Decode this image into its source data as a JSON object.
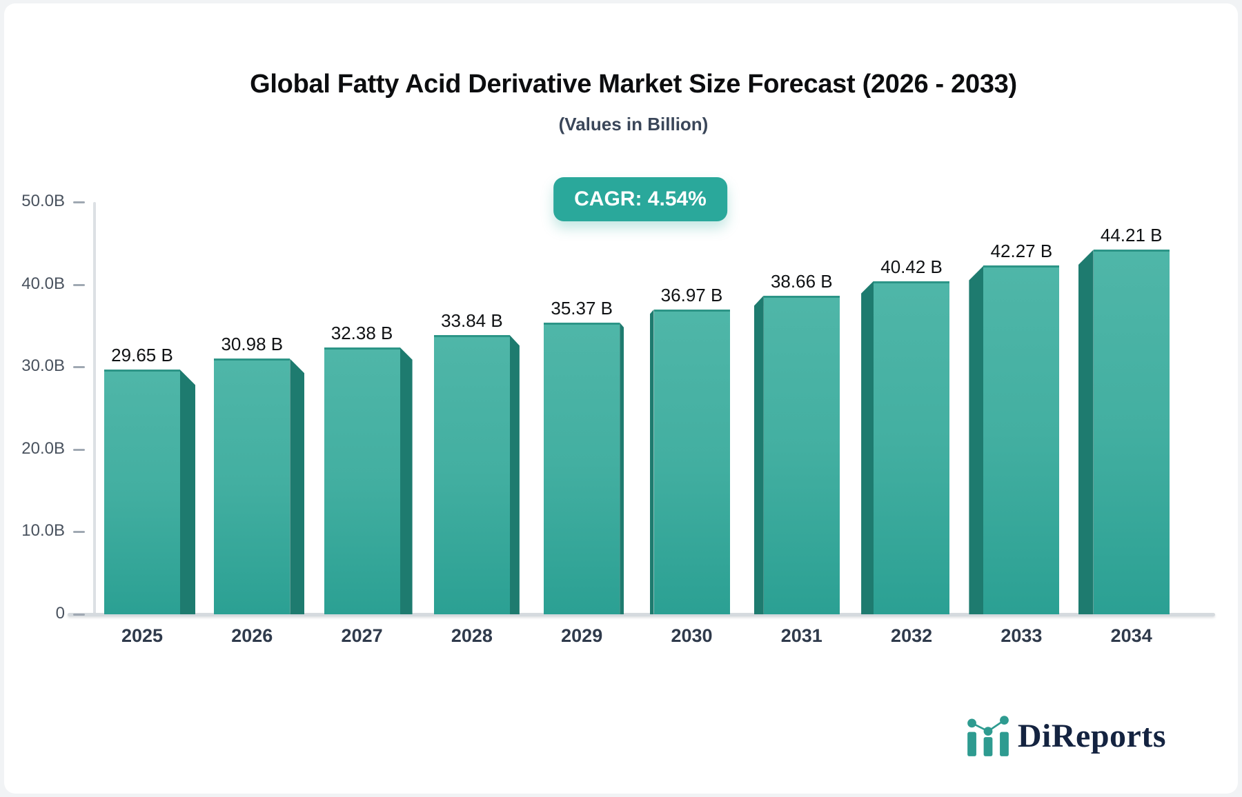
{
  "chart": {
    "title": "Global Fatty Acid Derivative Market Size Forecast (2026 - 2033)",
    "subtitle": "(Values in Billion)",
    "cagr_label": "CAGR: 4.54%"
  },
  "chart_data": {
    "type": "bar",
    "title": "Global Fatty Acid Derivative Market Size Forecast (2026 - 2033)",
    "subtitle": "(Values in Billion)",
    "annotation": "CAGR: 4.54%",
    "categories": [
      "2025",
      "2026",
      "2027",
      "2028",
      "2029",
      "2030",
      "2031",
      "2032",
      "2033",
      "2034"
    ],
    "values": [
      29.65,
      30.98,
      32.38,
      33.84,
      35.37,
      36.97,
      38.66,
      40.42,
      42.27,
      44.21
    ],
    "value_labels": [
      "29.65 B",
      "30.98 B",
      "32.38 B",
      "33.84 B",
      "35.37 B",
      "36.97 B",
      "38.66 B",
      "40.42 B",
      "42.27 B",
      "44.21 B"
    ],
    "xlabel": "",
    "ylabel": "",
    "ylim": [
      0,
      50
    ],
    "yticks": [
      {
        "value": 50,
        "label": "50.0B"
      },
      {
        "value": 40,
        "label": "40.0B"
      },
      {
        "value": 30,
        "label": "30.0B"
      },
      {
        "value": 20,
        "label": "20.0B"
      },
      {
        "value": 10,
        "label": "10.0B"
      },
      {
        "value": 0,
        "label": "0"
      }
    ],
    "grid": false,
    "legend": "none",
    "bar_style": "3d-prism",
    "colors": {
      "bar_face_top": "#4FB6A8",
      "bar_face_bottom": "#2BA093",
      "bar_side": "#1E7B6F",
      "bar_top_edge": "#2C9587",
      "badge_bg": "#2AA89B",
      "axis_line": "#D5DADE",
      "tick": "#9FA8B2",
      "y_label": "#49525E",
      "x_label": "#2F3A4B",
      "logo_navy": "#142340",
      "logo_teal": "#2E9B90"
    }
  },
  "footer": {
    "brand": "DiReports"
  }
}
